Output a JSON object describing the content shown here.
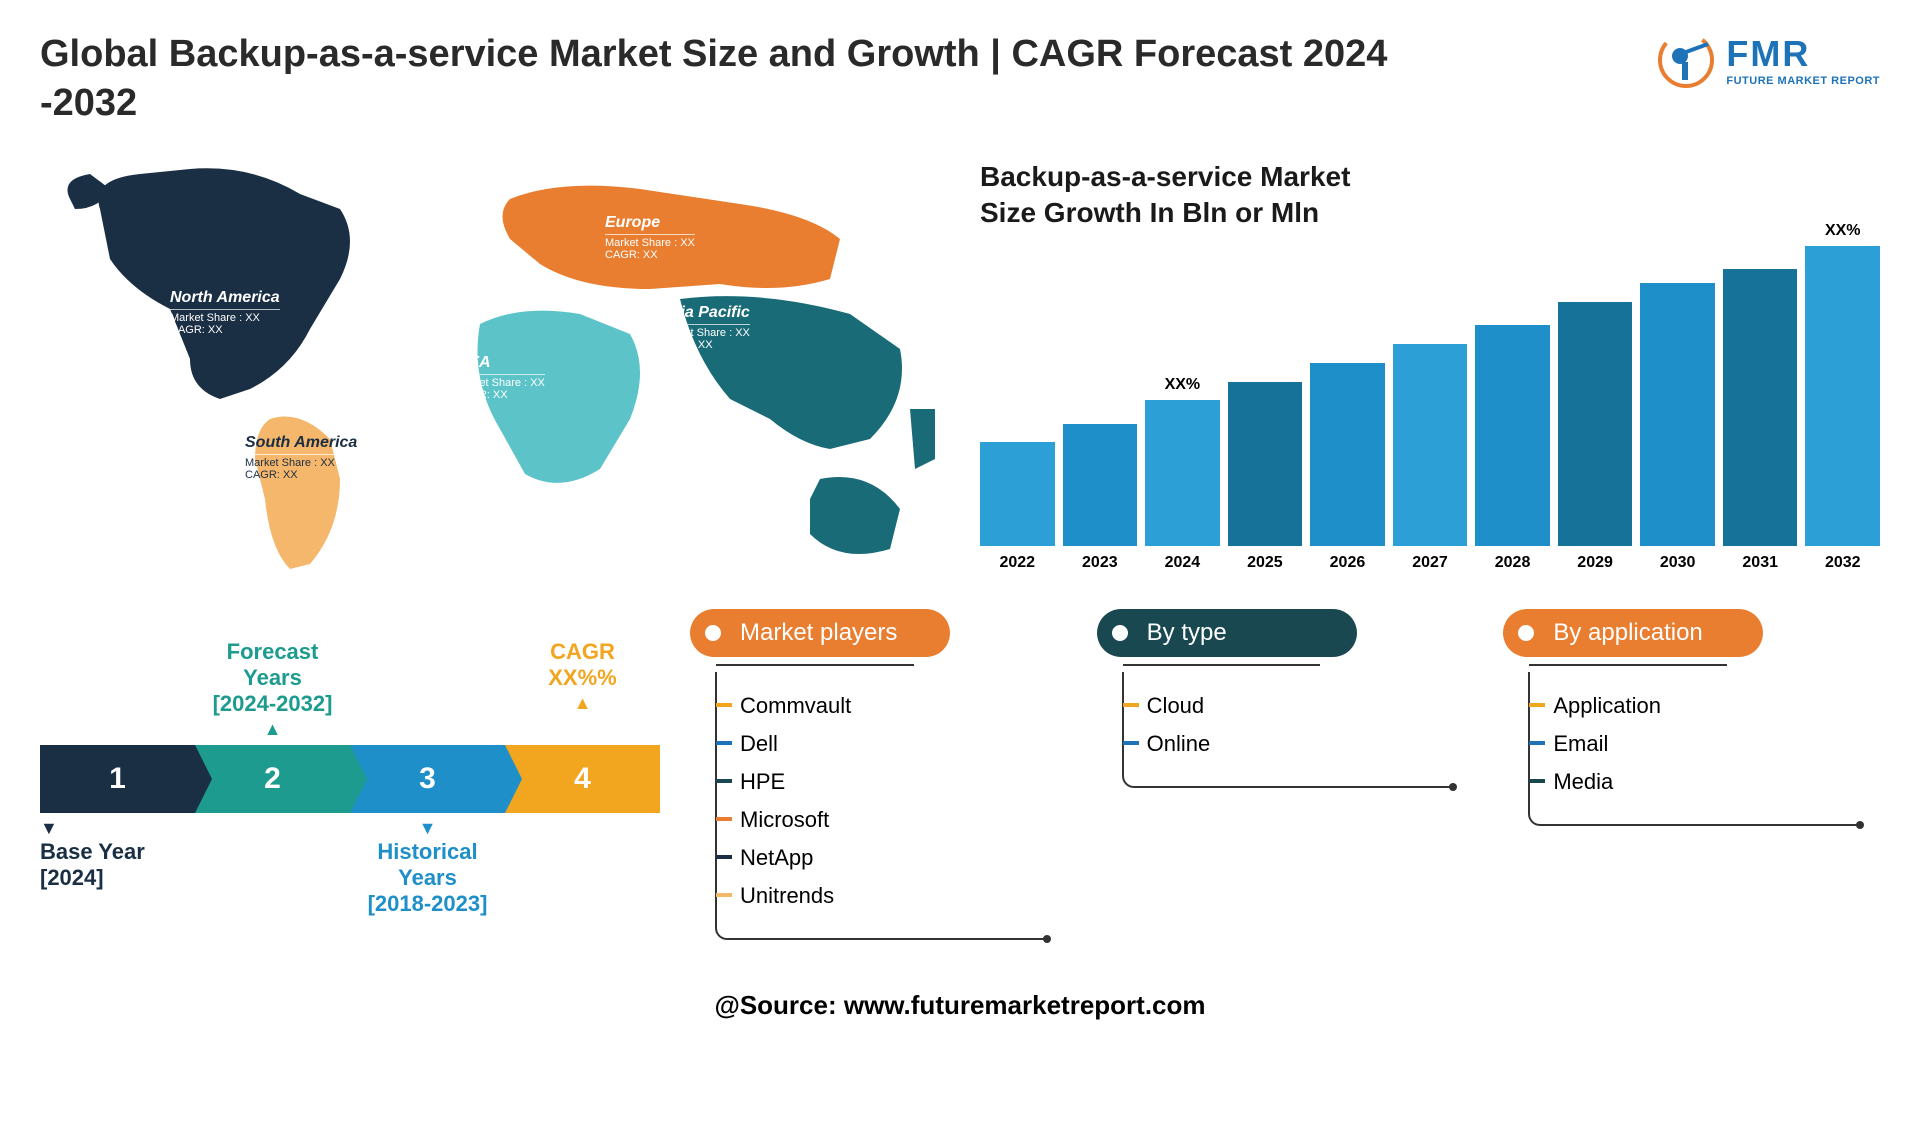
{
  "title": "Global Backup-as-a-service Market Size and Growth | CAGR Forecast 2024 -2032",
  "logo": {
    "brand": "FMR",
    "tagline": "FUTURE MARKET REPORT"
  },
  "map": {
    "regions": [
      {
        "name": "North America",
        "share": "Market Share : XX",
        "cagr": "CAGR: XX",
        "color": "#1a2e44"
      },
      {
        "name": "South America",
        "share": "Market Share : XX",
        "cagr": "CAGR: XX",
        "color": "#f5b76b"
      },
      {
        "name": "Europe",
        "share": "Market Share : XX",
        "cagr": "CAGR: XX",
        "color": "#e97e30"
      },
      {
        "name": "MEA",
        "share": "Market Share : XX",
        "cagr": "CAGR: XX",
        "color": "#5cc4c9"
      },
      {
        "name": "Asia Pacific",
        "share": "Market Share : XX",
        "cagr": "CAGR: XX",
        "color": "#1a6b78"
      }
    ]
  },
  "chart": {
    "title": "Backup-as-a-service Market Size Growth In Bln or Mln",
    "type": "bar",
    "categories": [
      "2022",
      "2023",
      "2024",
      "2025",
      "2026",
      "2027",
      "2028",
      "2029",
      "2030",
      "2031",
      "2032"
    ],
    "values": [
      110,
      130,
      155,
      175,
      195,
      215,
      235,
      260,
      280,
      295,
      320
    ],
    "colors": [
      "#2ca0d6",
      "#1e8fc9",
      "#2ca0d6",
      "#177299",
      "#1e8fc9",
      "#2ca0d6",
      "#1e8fc9",
      "#177299",
      "#1e8fc9",
      "#177299",
      "#2ca0d6"
    ],
    "annotations": {
      "2024": "XX%",
      "2032": "XX%"
    },
    "label_fontsize": 16,
    "title_fontsize": 28,
    "background": "#ffffff"
  },
  "timeline": {
    "items": [
      {
        "num": "1",
        "label": "Base Year",
        "sub": "[2024]",
        "color": "#1a2e44",
        "pos": "bottom"
      },
      {
        "num": "2",
        "label": "Forecast Years",
        "sub": "[2024-2032]",
        "color": "#1c9b8e",
        "pos": "top"
      },
      {
        "num": "3",
        "label": "Historical Years",
        "sub": "[2018-2023]",
        "color": "#1e8fc9",
        "pos": "bottom"
      },
      {
        "num": "4",
        "label": "CAGR",
        "sub": "XX%%",
        "color": "#f2a51e",
        "pos": "top"
      }
    ]
  },
  "categories": [
    {
      "title": "Market players",
      "header_color": "#e97e30",
      "items": [
        {
          "text": "Commvault",
          "tick": "tick-orange"
        },
        {
          "text": "Dell",
          "tick": "tick-blue"
        },
        {
          "text": "HPE",
          "tick": "tick-teal"
        },
        {
          "text": "Microsoft",
          "tick": "tick-orange2"
        },
        {
          "text": "NetApp",
          "tick": "tick-navy"
        },
        {
          "text": "Unitrends",
          "tick": "tick-lorange"
        }
      ]
    },
    {
      "title": "By type",
      "header_color": "#1a4850",
      "items": [
        {
          "text": "Cloud",
          "tick": "tick-orange"
        },
        {
          "text": "Online",
          "tick": "tick-blue"
        }
      ]
    },
    {
      "title": "By application",
      "header_color": "#e97e30",
      "items": [
        {
          "text": "Application",
          "tick": "tick-orange"
        },
        {
          "text": "Email",
          "tick": "tick-blue"
        },
        {
          "text": "Media",
          "tick": "tick-teal"
        }
      ]
    }
  ],
  "source": "@Source: www.futuremarketreport.com"
}
